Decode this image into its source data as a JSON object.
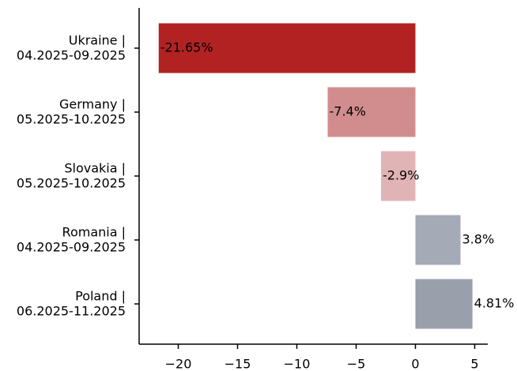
{
  "chart_data": {
    "type": "bar",
    "orientation": "horizontal",
    "categories": [
      "Ukraine |\n04.2025-09.2025",
      "Germany |\n05.2025-10.2025",
      "Slovakia |\n05.2025-10.2025",
      "Romania |\n04.2025-09.2025",
      "Poland |\n06.2025-11.2025"
    ],
    "values": [
      -21.65,
      -7.4,
      -2.9,
      3.8,
      4.81
    ],
    "value_labels": [
      "-21.65%",
      "-7.4%",
      "-2.9%",
      "3.8%",
      "4.81%"
    ],
    "colors": [
      "#b22222",
      "#d18d8d",
      "#e0b4b4",
      "#a4aab6",
      "#9aa0ab"
    ],
    "xlim": [
      -23.3,
      6.1
    ],
    "xticks": [
      {
        "value": -20,
        "label": "−20"
      },
      {
        "value": -15,
        "label": "−15"
      },
      {
        "value": -10,
        "label": "−10"
      },
      {
        "value": -5,
        "label": "−5"
      },
      0,
      5
    ],
    "grid": false
  }
}
